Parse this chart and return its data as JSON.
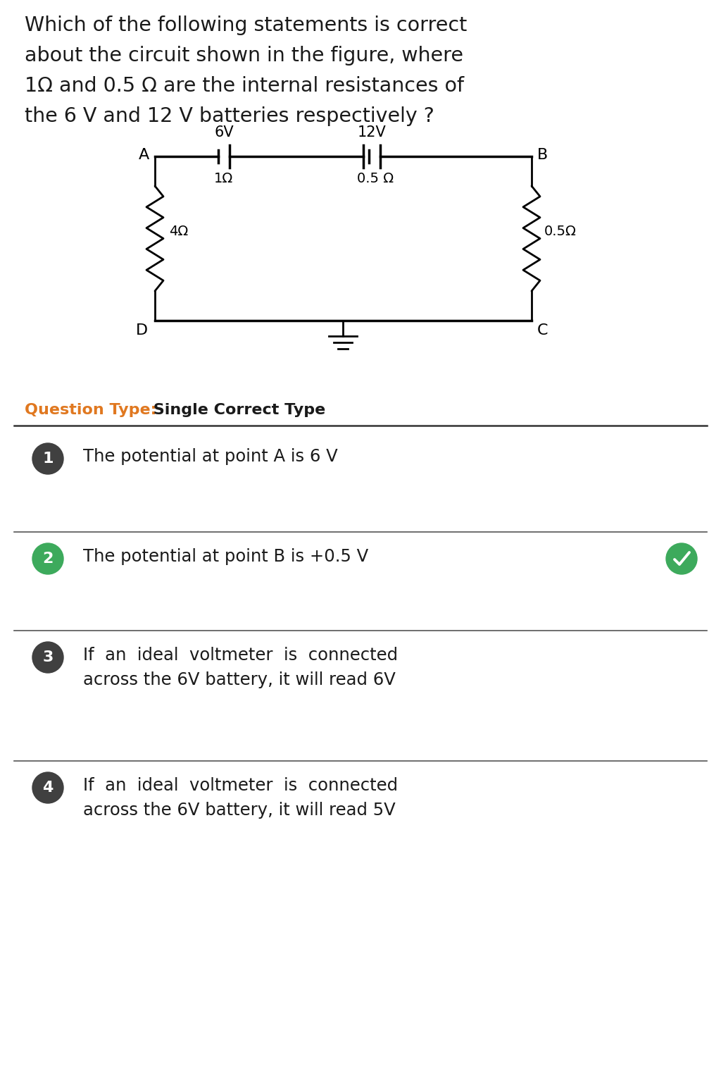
{
  "bg_color": "#ffffff",
  "question_text_lines": [
    "Which of the following statements is correct",
    "about the circuit shown in the figure, where",
    "1Ω and 0.5 Ω are the internal resistances of",
    "the 6 V and 12 V batteries respectively ?"
  ],
  "question_fontsize": 20.5,
  "qt_label": "Question Type:",
  "qt_label_color": "#e07820",
  "qt_value": " Single Correct Type",
  "qt_fontsize": 16,
  "options": [
    {
      "num": "1",
      "text": "The potential at point A is 6 V",
      "correct": false,
      "two_line": false
    },
    {
      "num": "2",
      "text": "The potential at point B is +0.5 V",
      "correct": true,
      "two_line": false
    },
    {
      "num": "3",
      "text": "If  an  ideal  voltmeter  is  connected",
      "text2": "across the 6V battery, it will read 6V",
      "correct": false,
      "two_line": true
    },
    {
      "num": "4",
      "text": "If  an  ideal  voltmeter  is  connected",
      "text2": "across the 6V battery, it will read 5V",
      "correct": false,
      "two_line": true
    }
  ],
  "circle_correct_color": "#3daa5c",
  "circle_incorrect_color": "#404040",
  "text_color": "#1a1a1a",
  "option_fontsize": 17.5,
  "circuit": {
    "A_label": "A",
    "B_label": "B",
    "C_label": "C",
    "D_label": "D",
    "battery1_label": "6V",
    "battery2_label": "12V",
    "r1_label": "1Ω",
    "r2_label": "0.5 Ω",
    "r3_label": "4Ω",
    "r4_label": "0.5Ω"
  }
}
